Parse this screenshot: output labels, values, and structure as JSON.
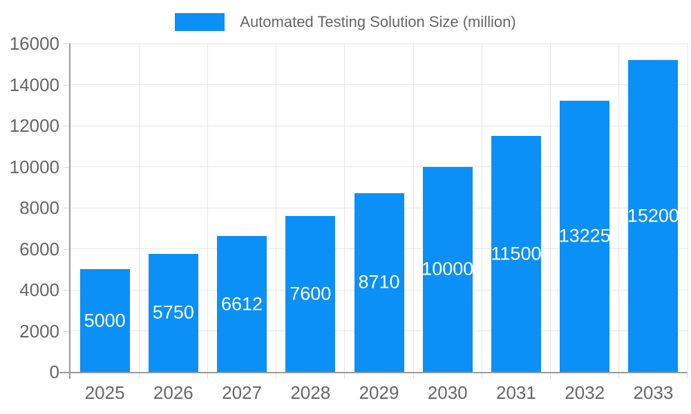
{
  "chart_data": {
    "type": "bar",
    "legend_label": "Automated Testing Solution Size (million)",
    "categories": [
      "2025",
      "2026",
      "2027",
      "2028",
      "2029",
      "2030",
      "2031",
      "2032",
      "2033"
    ],
    "values": [
      5000,
      5750,
      6612,
      7600,
      8710,
      10000,
      11500,
      13225,
      15200
    ],
    "value_labels": [
      "5000",
      "5750",
      "6612",
      "7600",
      "8710",
      "10000",
      "11500",
      "13225",
      "15200"
    ],
    "ylim": [
      0,
      16000
    ],
    "ytick_step": 2000,
    "yticks": [
      0,
      2000,
      4000,
      6000,
      8000,
      10000,
      12000,
      14000,
      16000
    ],
    "grid": true,
    "legend_position": "top",
    "bar_color": "#0b90f7",
    "bar_value_text_color": "#ffffff",
    "axis_text_color": "#666666",
    "gridline_color": "#e6e6e6",
    "axis_line_color": "#9a9a9a"
  }
}
